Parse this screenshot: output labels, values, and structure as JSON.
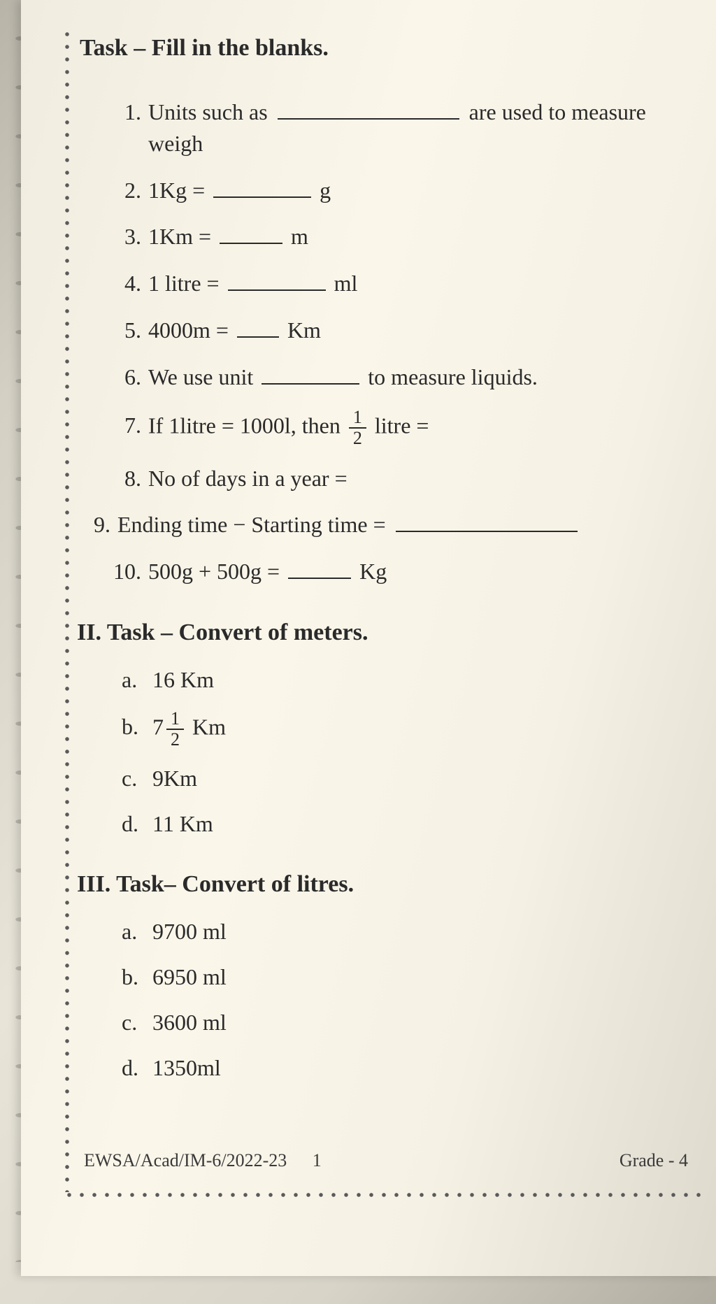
{
  "task1": {
    "title": "Task – Fill in the blanks.",
    "items": [
      {
        "num": "1.",
        "pre": "Units such as",
        "blank": "long",
        "post": "are used to measure weigh"
      },
      {
        "num": "2.",
        "pre": "1Kg =",
        "blank": "med",
        "post": "g"
      },
      {
        "num": "3.",
        "pre": "1Km =",
        "blank": "short",
        "post": "m"
      },
      {
        "num": "4.",
        "pre": "1 litre =",
        "blank": "med",
        "post": "ml"
      },
      {
        "num": "5.",
        "pre": "4000m =",
        "blank": "tiny",
        "post": "Km"
      },
      {
        "num": "6.",
        "pre": "We use unit",
        "blank": "med",
        "post": "to measure liquids."
      },
      {
        "num": "7.",
        "pre": "If 1litre = 1000l, then",
        "frac": {
          "n": "1",
          "d": "2"
        },
        "post": "litre ="
      },
      {
        "num": "8.",
        "pre": "No of days in a year ="
      },
      {
        "num": "9.",
        "pre": "Ending time − Starting time =",
        "blank": "long",
        "outdent": true
      },
      {
        "num": "10.",
        "pre": "500g + 500g =",
        "blank": "short",
        "post": "Kg"
      }
    ]
  },
  "task2": {
    "title": "II. Task – Convert of meters.",
    "options": [
      {
        "letter": "a.",
        "text": "16 Km"
      },
      {
        "letter": "b.",
        "frac_pre": "7",
        "frac": {
          "n": "1",
          "d": "2"
        },
        "frac_post": "Km"
      },
      {
        "letter": "c.",
        "text": "9Km"
      },
      {
        "letter": "d.",
        "text": "11 Km"
      }
    ]
  },
  "task3": {
    "title": "III. Task– Convert of litres.",
    "options": [
      {
        "letter": "a.",
        "text": "9700 ml"
      },
      {
        "letter": "b.",
        "text": "6950 ml"
      },
      {
        "letter": "c.",
        "text": "3600 ml"
      },
      {
        "letter": "d.",
        "text": "1350ml"
      }
    ]
  },
  "footer": {
    "ref": "EWSA/Acad/IM-6/2022-23",
    "page": "1",
    "grade": "Grade - 4"
  },
  "colors": {
    "text": "#2a2a2a",
    "paper": "#f5f1e5",
    "dots": "#5a5a5a"
  }
}
